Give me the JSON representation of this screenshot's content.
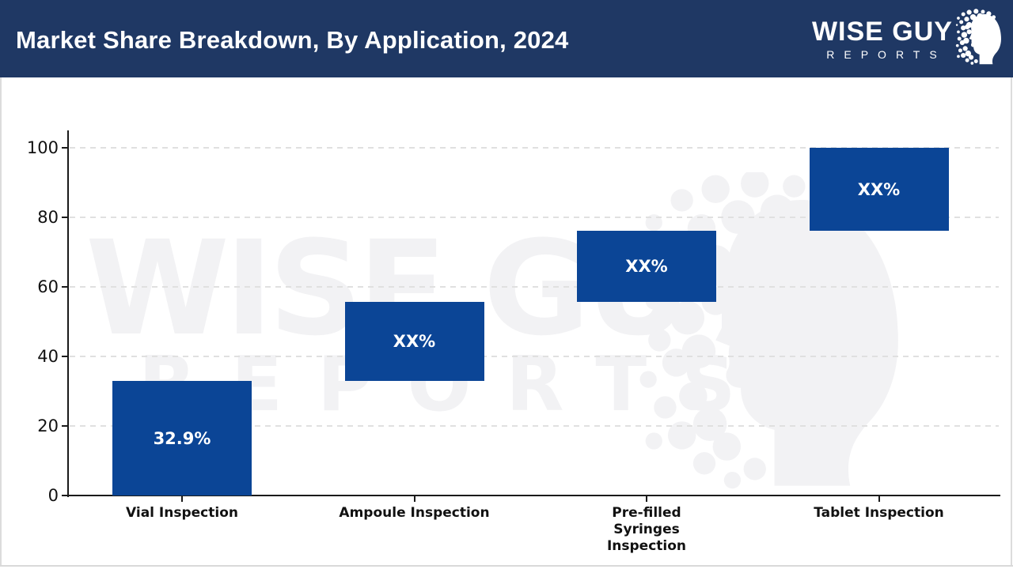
{
  "header": {
    "title": "Market Share Breakdown, By Application, 2024",
    "logo": {
      "brand": "WISE GUY",
      "sub": "REPORTS"
    }
  },
  "watermark": {
    "brand": "WISE GUY",
    "sub": "REPORTS"
  },
  "colors": {
    "header_bg": "#1F3864",
    "bar": "#0B4596",
    "axis": "#1a1a1a",
    "grid": "#e0e0e0",
    "watermark": "#f2f2f4",
    "value_label": "#ffffff",
    "tick_label": "#111111"
  },
  "chart_data": {
    "type": "bar",
    "subtype": "waterfall",
    "title": "Market Share Breakdown, By Application, 2024",
    "categories": [
      "Vial Inspection",
      "Ampoule Inspection",
      "Pre-filled Syringes Inspection",
      "Tablet Inspection"
    ],
    "x_tick_labels": [
      "Vial Inspection",
      "Ampoule Inspection",
      "Pre-filled\nSyringes\nInspection",
      "Tablet Inspection"
    ],
    "segments": [
      {
        "category": "Vial Inspection",
        "start": 0,
        "end": 32.9,
        "value_label": "32.9%"
      },
      {
        "category": "Ampoule Inspection",
        "start": 32.9,
        "end": 55.7,
        "value_label": "XX%"
      },
      {
        "category": "Pre-filled Syringes Inspection",
        "start": 55.7,
        "end": 76.1,
        "value_label": "XX%"
      },
      {
        "category": "Tablet Inspection",
        "start": 76.1,
        "end": 100,
        "value_label": "XX%"
      }
    ],
    "xlabel": "",
    "ylabel": "",
    "yticks": [
      0,
      20,
      40,
      60,
      80,
      100
    ],
    "ylim": [
      0,
      105
    ],
    "grid": "horizontal dashed",
    "legend": "none"
  }
}
